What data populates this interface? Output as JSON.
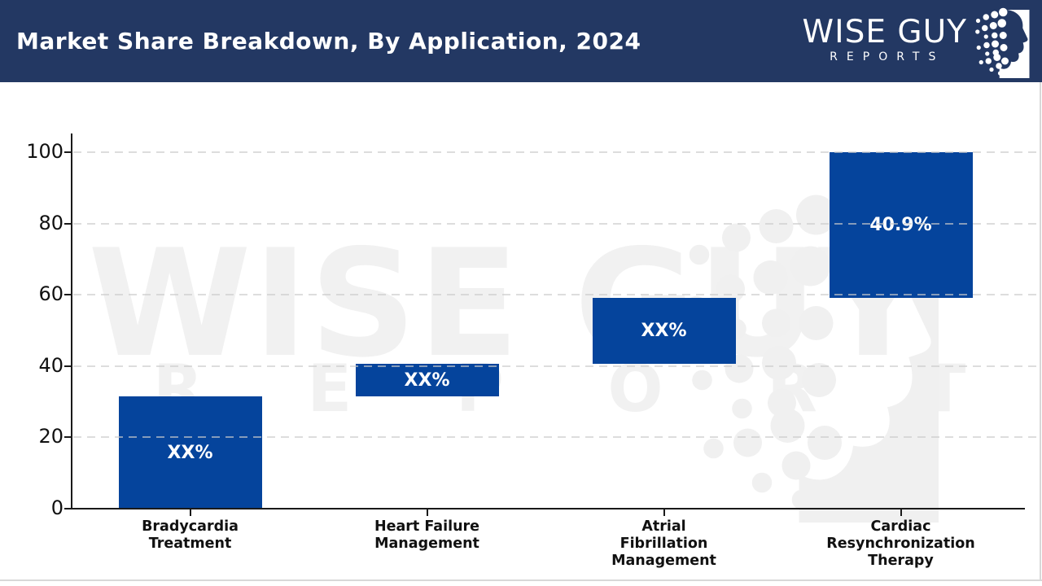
{
  "header": {
    "title": "Market Share Breakdown, By Application, 2024",
    "bg_color": "#233863"
  },
  "logo": {
    "brand_top": "WISE GUY",
    "brand_bottom": "REPORTS"
  },
  "watermark": {
    "line1": "WISE GUY",
    "line2": "R E P O R T S"
  },
  "chart_data": {
    "type": "bar",
    "subtype": "waterfall",
    "title": "Market Share Breakdown, By Application, 2024",
    "categories": [
      "Bradycardia Treatment",
      "Heart Failure Management",
      "Atrial Fibrillation Management",
      "Cardiac Resynchronization Therapy"
    ],
    "category_lines": [
      [
        "Bradycardia",
        "Treatment"
      ],
      [
        "Heart Failure",
        "Management"
      ],
      [
        "Atrial",
        "Fibrillation",
        "Management"
      ],
      [
        "Cardiac",
        "Resynchronization",
        "Therapy"
      ]
    ],
    "segments": [
      {
        "category": "Bradycardia Treatment",
        "start": 0,
        "end": 31.5,
        "label": "XX%"
      },
      {
        "category": "Heart Failure Management",
        "start": 31.5,
        "end": 40.6,
        "label": "XX%"
      },
      {
        "category": "Atrial Fibrillation Management",
        "start": 40.6,
        "end": 59.1,
        "label": "XX%"
      },
      {
        "category": "Cardiac Resynchronization Therapy",
        "start": 59.1,
        "end": 100,
        "label": "40.9%"
      }
    ],
    "ylim": [
      0,
      100
    ],
    "yticks": [
      0,
      20,
      40,
      60,
      80,
      100
    ],
    "grid": "horizontal-dashed",
    "grid_above_bars": true,
    "legend": "none",
    "bar_color": "#05449c",
    "bar_label_color": "#ffffff",
    "watermark_color": "#f1f1f1"
  }
}
